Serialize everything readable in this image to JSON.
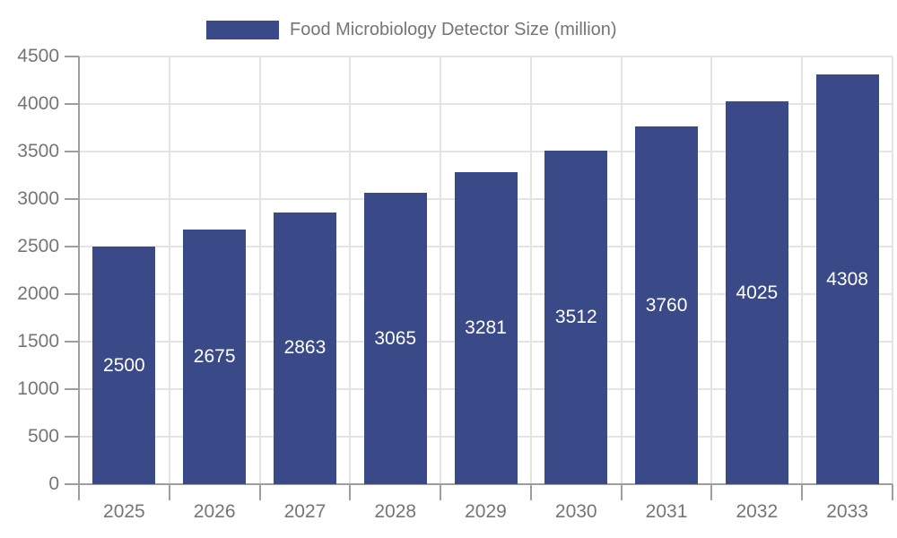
{
  "legend": {
    "items": [
      {
        "label": "Food Microbiology Detector Size (million)"
      }
    ]
  },
  "chart_data": {
    "type": "bar",
    "title": "",
    "categories": [
      "2025",
      "2026",
      "2027",
      "2028",
      "2029",
      "2030",
      "2031",
      "2032",
      "2033"
    ],
    "series": [
      {
        "name": "Food Microbiology Detector Size (million)",
        "values": [
          2500,
          2675,
          2863,
          3065,
          3281,
          3512,
          3760,
          4025,
          4308
        ]
      }
    ],
    "xlabel": "",
    "ylabel": "",
    "ylim": [
      0,
      4500
    ],
    "ytick_step": 500,
    "yticks": [
      0,
      500,
      1000,
      1500,
      2000,
      2500,
      3000,
      3500,
      4000,
      4500
    ],
    "grid": true,
    "legend_position": "top",
    "bar_value_labels": true,
    "colors": {
      "bar": "#3A4A88",
      "bar_label": "#FFFFFF",
      "grid_line": "#E4E4E4",
      "axis_line": "#9E9E9E",
      "tick_label": "#757575",
      "legend_text": "#757575",
      "background": "#FFFFFF"
    }
  }
}
